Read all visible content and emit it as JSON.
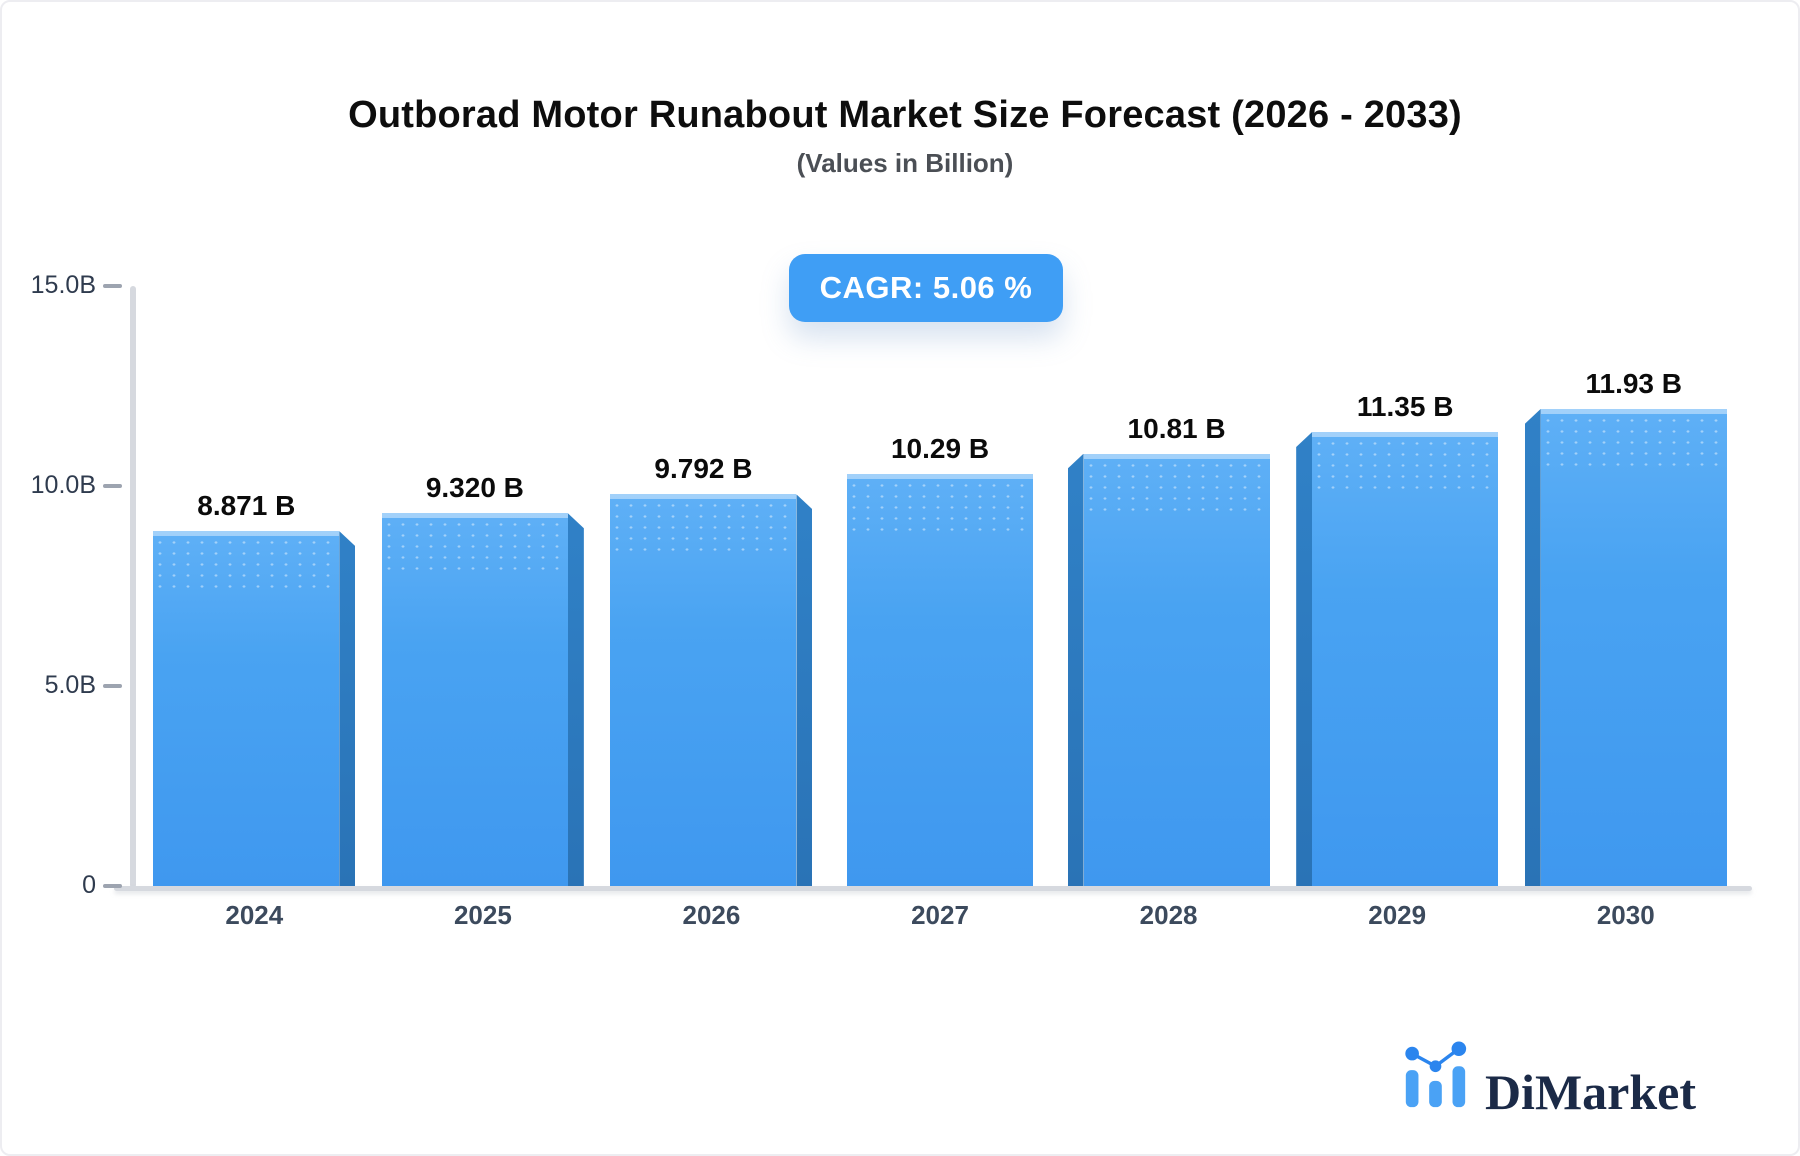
{
  "title": "Outborad Motor Runabout Market Size Forecast (2026 - 2033)",
  "subtitle": "(Values in Billion)",
  "cagr_badge": "CAGR: 5.06 %",
  "logo_text": "DiMarket",
  "colors": {
    "bar_front": "#49a3f2",
    "bar_side": "#2c79bd",
    "badge_bg": "#3f9ef5",
    "axis_line": "#d6d9df",
    "tick_label": "#2f3b4e",
    "x_label": "#3c4a5d",
    "value_label": "#0b0b0b",
    "logo_text": "#1b2a47",
    "logo_icon_bars": "#4aa2f5",
    "logo_icon_line": "#2b85ee"
  },
  "chart_data": {
    "type": "bar",
    "title": "Outborad Motor Runabout Market Size Forecast (2026 - 2033)",
    "subtitle": "(Values in Billion)",
    "unit": "Billion",
    "cagr_percent": 5.06,
    "categories": [
      "2024",
      "2025",
      "2026",
      "2027",
      "2028",
      "2029",
      "2030"
    ],
    "values": [
      8.871,
      9.32,
      9.792,
      10.29,
      10.81,
      11.35,
      11.93
    ],
    "value_labels": [
      "8.871 B",
      "9.320 B",
      "9.792 B",
      "10.29 B",
      "10.81 B",
      "11.35 B",
      "11.93 B"
    ],
    "ylim": [
      0,
      15
    ],
    "yticks": [
      {
        "value": 15,
        "label": "15.0B"
      },
      {
        "value": 10,
        "label": "10.0B"
      },
      {
        "value": 5,
        "label": "5.0B"
      },
      {
        "value": 0,
        "label": "0"
      }
    ],
    "grid": false,
    "legend": false
  }
}
